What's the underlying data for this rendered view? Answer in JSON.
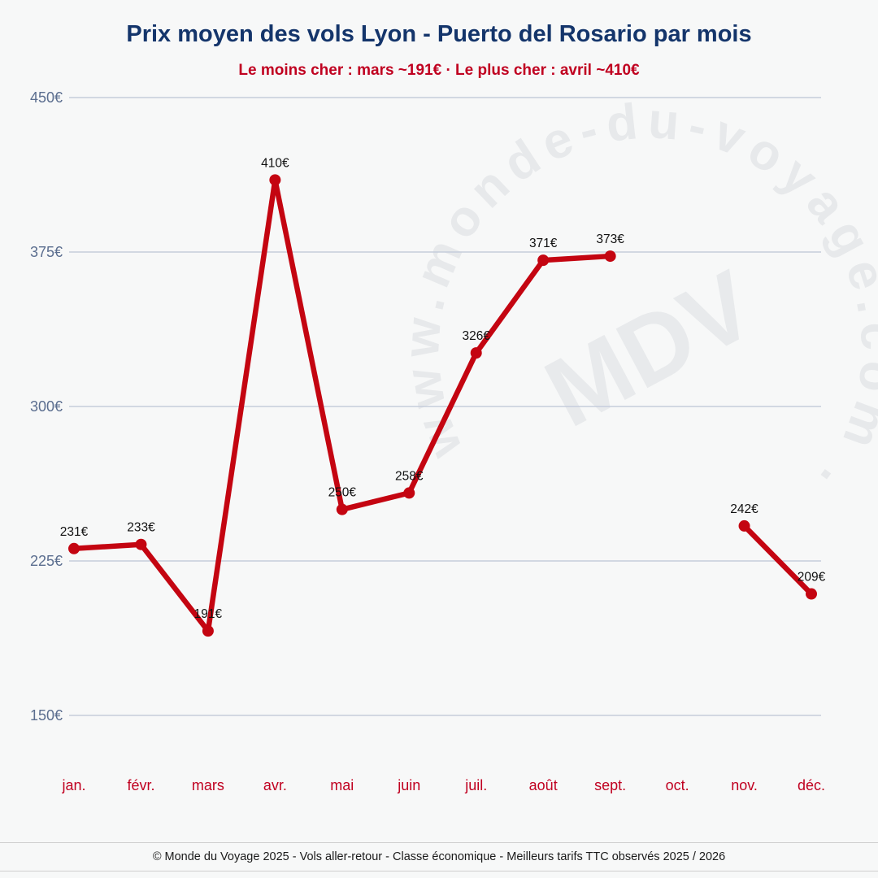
{
  "title": "Prix moyen des vols Lyon - Puerto del Rosario par mois",
  "subtitle": "Le moins cher : mars ~191€ · Le plus cher : avril ~410€",
  "watermark": {
    "ring_text": "www.monde-du-voyage.com .",
    "center_text": "MDV"
  },
  "footer": "© Monde du Voyage 2025 - Vols aller-retour - Classe économique - Meilleurs tarifs TTC observés 2025 / 2026",
  "colors": {
    "background": "#f7f8f8",
    "line": "#c40511",
    "point": "#c40511",
    "grid": "#c6cddb",
    "axis_text": "#5b6e8f",
    "month_text": "#c00020",
    "title_blue": "#14356b",
    "value_label": "#111111",
    "watermark": "rgba(120,130,150,0.13)"
  },
  "chart_data": {
    "type": "line",
    "title": "Prix moyen des vols Lyon - Puerto del Rosario par mois",
    "categories": [
      "jan.",
      "févr.",
      "mars",
      "avr.",
      "mai",
      "juin",
      "juil.",
      "août",
      "sept.",
      "oct.",
      "nov.",
      "déc."
    ],
    "values": [
      231,
      233,
      191,
      410,
      250,
      258,
      326,
      371,
      373,
      null,
      242,
      209
    ],
    "unit": "€",
    "ylim": [
      150,
      450
    ],
    "yticks": [
      150,
      225,
      300,
      375,
      450
    ],
    "grid": true,
    "legend": false,
    "notes": "No data for oct. — line is broken between sept. and nov."
  }
}
